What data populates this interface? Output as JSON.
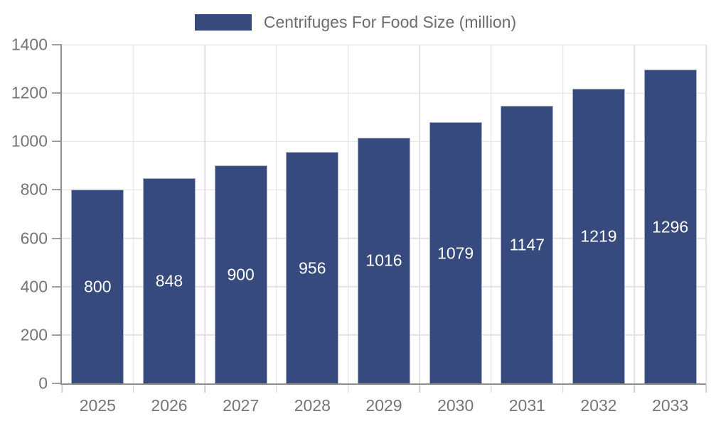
{
  "legend": {
    "label": "Centrifuges For Food Size (million)"
  },
  "colors": {
    "bar": "#374a7e",
    "bar_edge": "#aab0cd",
    "bar_label": "#ffffff",
    "grid": "#e2e2e2",
    "axis": "#8f8f8f",
    "y_tick": "#9e9e9e",
    "x_tick": "#cfcfcf",
    "axis_text": "#757575",
    "title_text": "#6b6e71",
    "background": "#ffffff"
  },
  "chart_data": {
    "type": "bar",
    "title": "Centrifuges For Food Size (million)",
    "categories": [
      "2025",
      "2026",
      "2027",
      "2028",
      "2029",
      "2030",
      "2031",
      "2032",
      "2033"
    ],
    "values": [
      800,
      848,
      900,
      956,
      1016,
      1079,
      1147,
      1219,
      1296
    ],
    "xlabel": "",
    "ylabel": "",
    "ylim": [
      0,
      1400
    ],
    "yticks": [
      0,
      200,
      400,
      600,
      800,
      1000,
      1200,
      1400
    ],
    "grid": true,
    "bar_value_labels": true,
    "legend_position": "top-center"
  }
}
